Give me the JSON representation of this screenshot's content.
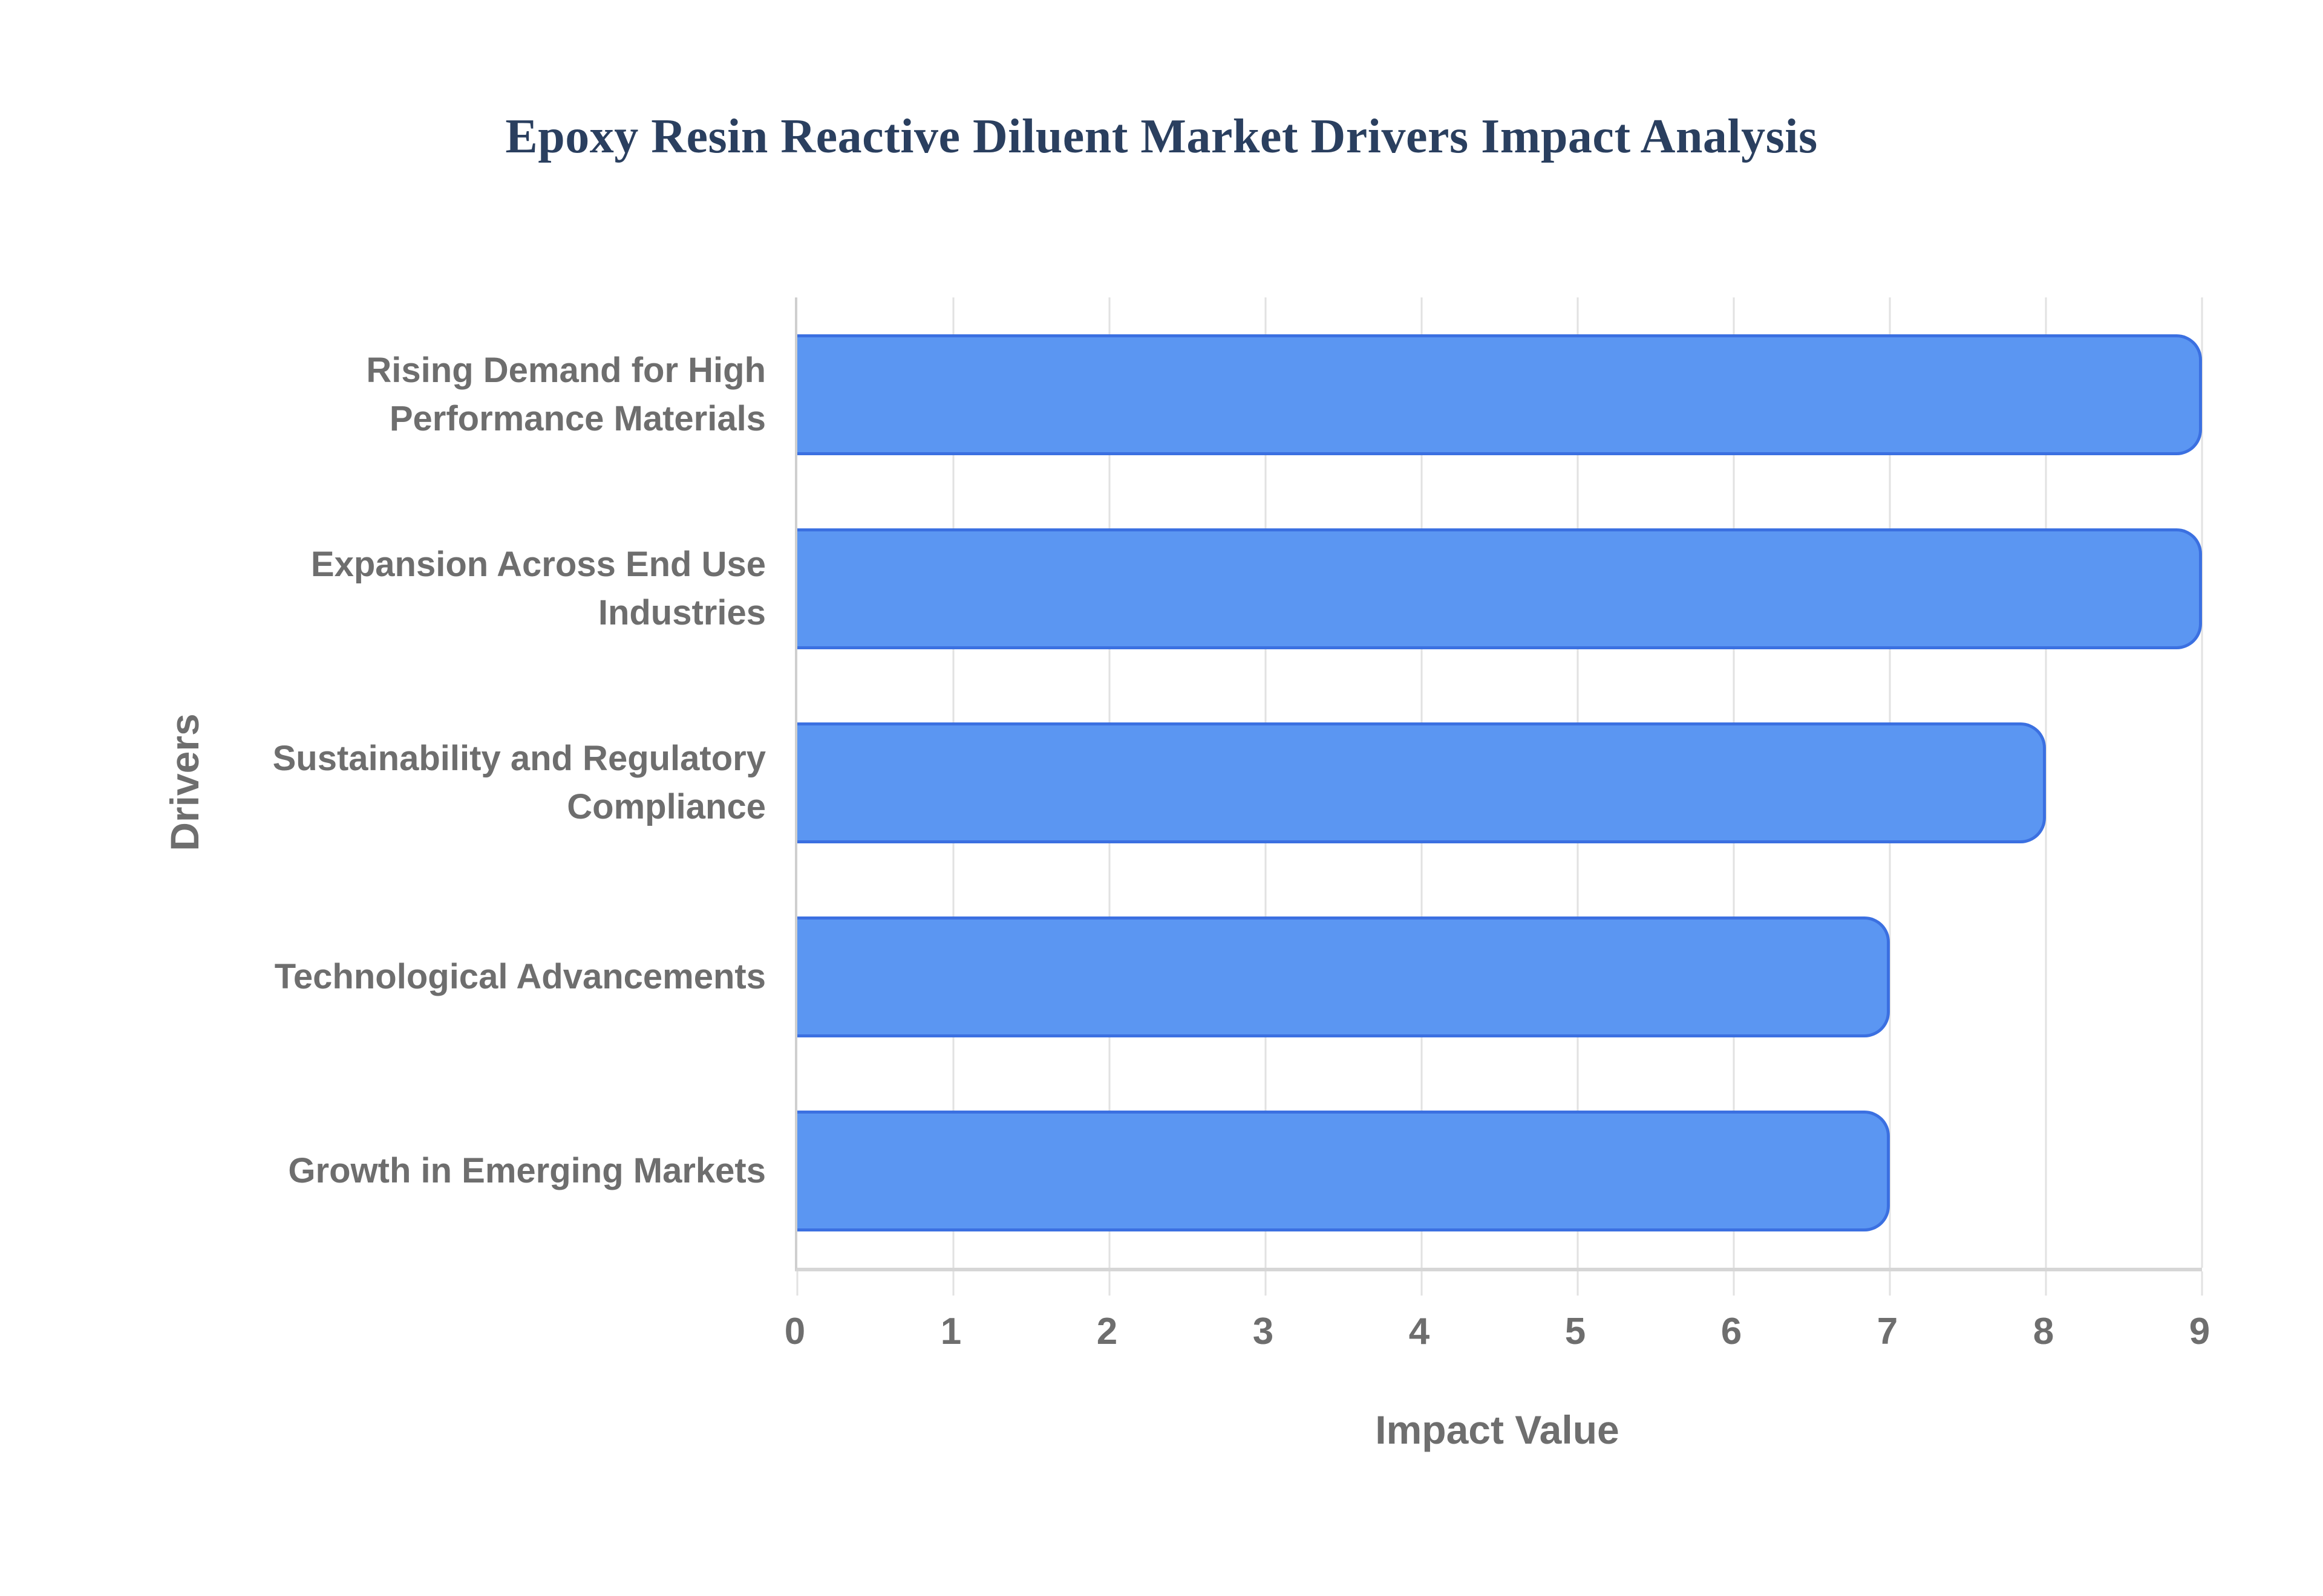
{
  "title": "Epoxy Resin Reactive Diluent Market Drivers Impact Analysis",
  "chart_data": {
    "type": "bar",
    "orientation": "horizontal",
    "title": "Epoxy Resin Reactive Diluent Market Drivers Impact Analysis",
    "categories": [
      "Rising Demand for High\nPerformance Materials",
      "Expansion Across End Use\nIndustries",
      "Sustainability and Regulatory\nCompliance",
      "Technological Advancements",
      "Growth in Emerging Markets"
    ],
    "values": [
      9,
      9,
      8,
      7,
      7
    ],
    "xlabel": "Impact Value",
    "ylabel": "Drivers",
    "xlim": [
      0,
      9
    ],
    "xticks": [
      0,
      1,
      2,
      3,
      4,
      5,
      6,
      7,
      8,
      9
    ],
    "grid": true,
    "legend": "none",
    "colors": {
      "bar_fill": "#5b96f2",
      "bar_border": "#3b70e1",
      "title_text": "#2a3f5f",
      "axis_text": "#6e6e6e",
      "gridline": "#e2e2e2",
      "axis_line": "#cfcfcf",
      "background": "#ffffff"
    }
  }
}
